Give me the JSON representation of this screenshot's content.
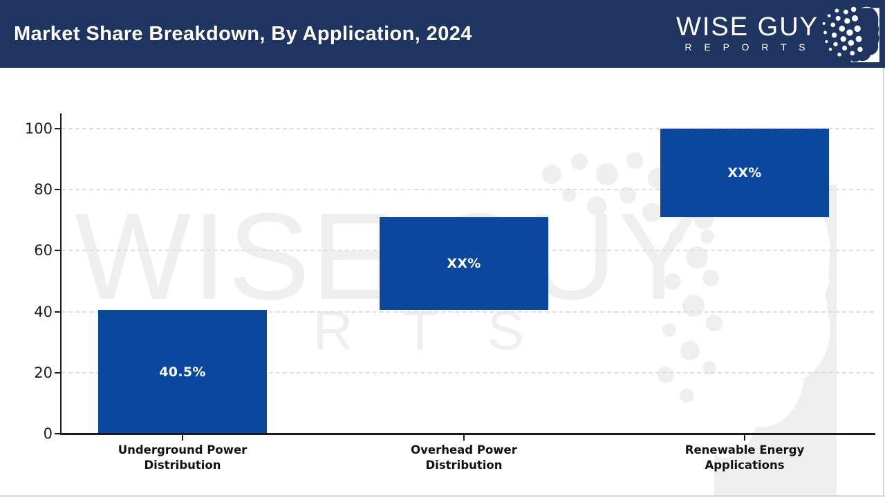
{
  "header": {
    "title": "Market Share Breakdown, By Application, 2024",
    "logo": {
      "name": "WISE GUY",
      "sub": "R E P O R T S"
    }
  },
  "watermark": {
    "line1": "WISE GUY",
    "line2": "P O R T S"
  },
  "colors": {
    "header_bg": "#1f3461",
    "bar": "#0b479e",
    "bar_label": "#ffffff",
    "grid": "#dedede",
    "axis": "#1a1a1a",
    "watermark": "#f0eff0"
  },
  "chart_data": {
    "type": "bar",
    "subtype": "floating-breakdown-bars",
    "title": "Market Share Breakdown, By Application, 2024",
    "xlabel": "",
    "ylabel": "",
    "ylim": [
      0,
      105
    ],
    "yticks": [
      0,
      20,
      40,
      60,
      80,
      100
    ],
    "grid": "horizontal-dashed",
    "legend": "none",
    "categories": [
      "Underground Power\nDistribution",
      "Overhead Power\nDistribution",
      "Renewable Energy\nApplications"
    ],
    "segments": [
      {
        "category": "Underground Power Distribution",
        "label": "40.5%",
        "start": 0,
        "end": 40.5
      },
      {
        "category": "Overhead Power Distribution",
        "label": "XX%",
        "start": 40.5,
        "end": 71
      },
      {
        "category": "Renewable Energy Applications",
        "label": "XX%",
        "start": 71,
        "end": 100
      }
    ]
  }
}
